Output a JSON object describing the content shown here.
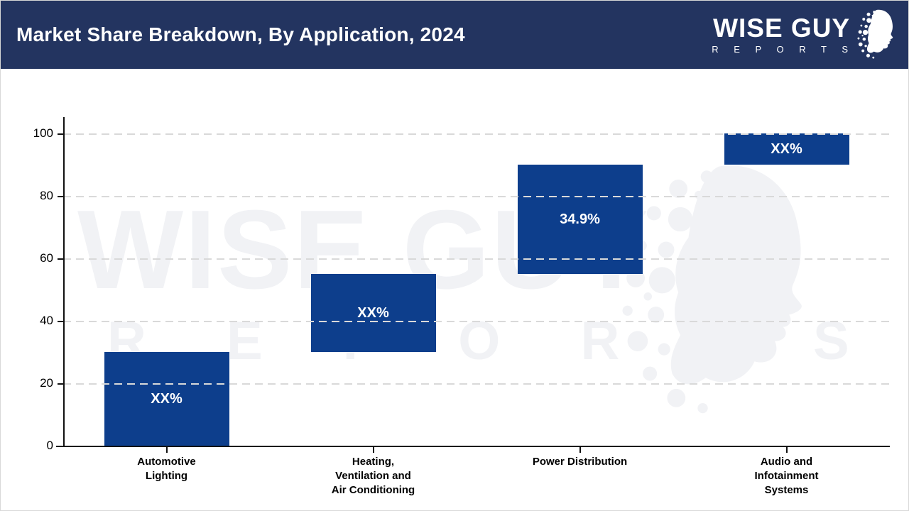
{
  "header": {
    "title": "Market Share Breakdown, By Application, 2024",
    "logo": {
      "name": "WISE GUY",
      "sub": "R E P O R T S"
    }
  },
  "watermark": {
    "line1": "WISE GUY",
    "line2": "R E P O R T S"
  },
  "chart_data": {
    "type": "bar",
    "subtype": "floating-waterfall",
    "title": "Market Share Breakdown, By Application, 2024",
    "categories": [
      "Automotive Lighting",
      "Heating, Ventilation and Air Conditioning",
      "Power Distribution",
      "Audio and Infotainment Systems"
    ],
    "category_lines": [
      [
        "Automotive",
        "Lighting"
      ],
      [
        "Heating,",
        "Ventilation and",
        "Air Conditioning"
      ],
      [
        "Power Distribution"
      ],
      [
        "Audio and",
        "Infotainment",
        "Systems"
      ]
    ],
    "bars": [
      {
        "from": 0,
        "to": 30,
        "label": "XX%"
      },
      {
        "from": 30,
        "to": 55,
        "label": "XX%"
      },
      {
        "from": 55,
        "to": 90,
        "label": "34.9%"
      },
      {
        "from": 90,
        "to": 100,
        "label": "XX%"
      }
    ],
    "ylim": [
      0,
      105
    ],
    "yticks": [
      0,
      20,
      40,
      60,
      80,
      100
    ],
    "grid": "horizontal-dashed-on-top",
    "legend": "none",
    "bar_color": "#0d3e8c",
    "value_label_color": "#ffffff",
    "header_color": "#233460",
    "watermark_color": "#f1f2f5"
  }
}
